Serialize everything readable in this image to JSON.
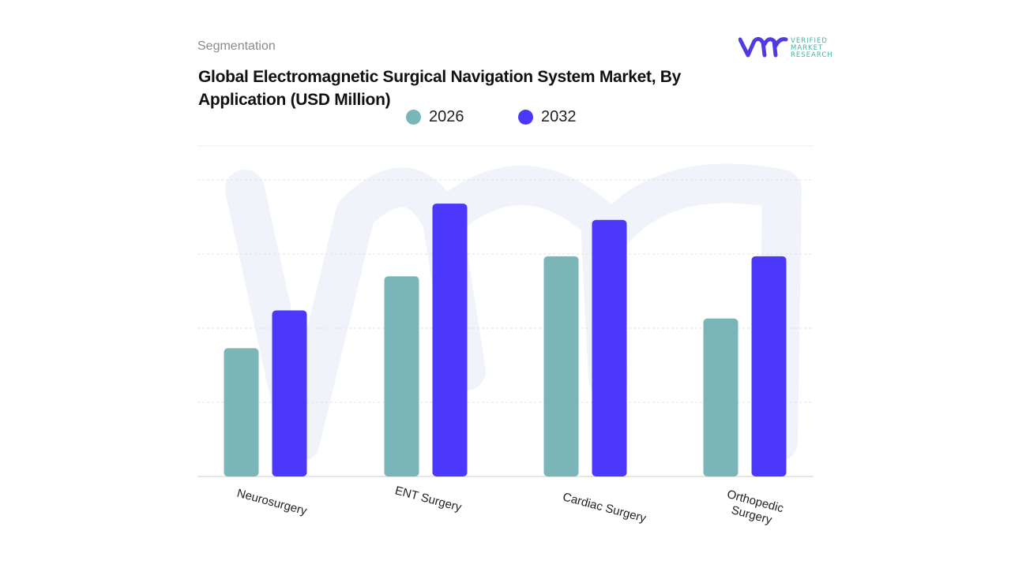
{
  "header": {
    "segment_label": "Segmentation",
    "title": "Global Electromagnetic Surgical Navigation System Market, By Application (USD Million)"
  },
  "logo": {
    "text": [
      "VERIFIED",
      "MARKET",
      "RESEARCH"
    ],
    "brand_color": "#4f3be0",
    "text_color": "#3fb5a3"
  },
  "chart_data": {
    "type": "bar",
    "title": "Global Electromagnetic Surgical Navigation System Market, By Application (USD Million)",
    "categories": [
      "Neurosurgery",
      "ENT Surgery",
      "Cardiac Surgery",
      "Orthopedic Surgery"
    ],
    "series": [
      {
        "name": "2026",
        "color": "#7ab5b8",
        "values": [
          1.73,
          2.7,
          2.97,
          2.13
        ]
      },
      {
        "name": "2032",
        "color": "#4b38fb",
        "values": [
          2.24,
          3.68,
          3.46,
          2.97
        ]
      }
    ],
    "ylim": [
      0,
      4
    ],
    "y_tick_labels_shown": false,
    "grid": true,
    "legend_position": "top-center",
    "xlabel": "",
    "ylabel": ""
  }
}
